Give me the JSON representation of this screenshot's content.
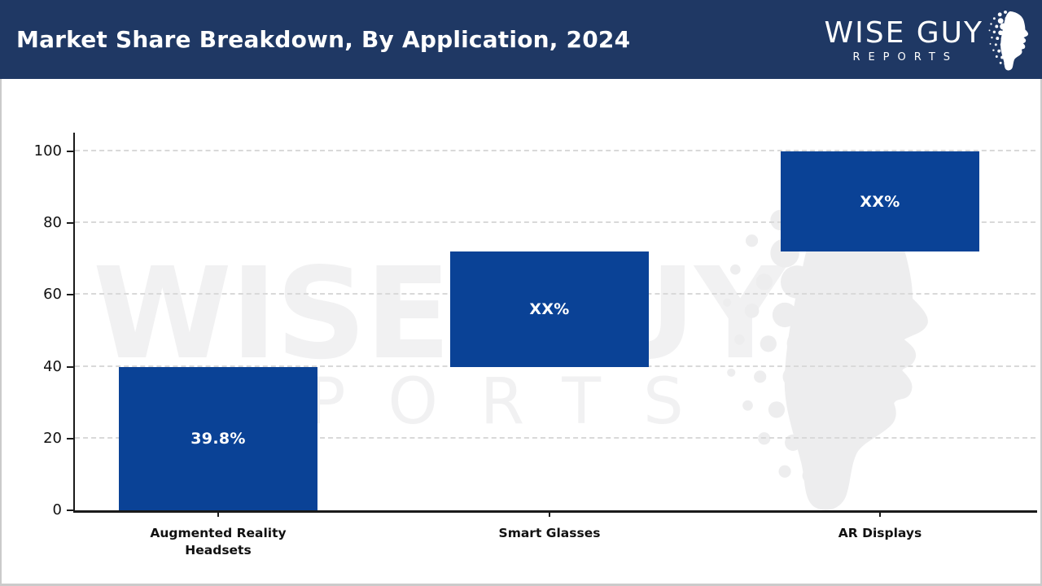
{
  "header": {
    "title": "Market Share Breakdown, By Application, 2024",
    "logo": {
      "brand_top": "WISE GUY",
      "brand_bottom": "REPORTS"
    }
  },
  "watermark": {
    "line1": "WISE GUY",
    "line2": "REPORTS"
  },
  "colors": {
    "header_bg": "#1f3864",
    "bar_fill": "#0a4296",
    "grid_line": "#d9d9d9",
    "axis_line": "#1a1a1a",
    "value_label_text": "#ffffff",
    "tick_label_text": "#111111",
    "watermark_gray": "#f1f1f2",
    "frame_border": "#cbcbcb"
  },
  "chart_data": {
    "type": "bar",
    "subtype": "floating-waterfall",
    "title": "Market Share Breakdown, By Application, 2024",
    "categories": [
      "Augmented Reality Headsets",
      "Smart Glasses",
      "AR Displays"
    ],
    "segments": [
      {
        "category": "Augmented Reality Headsets",
        "start": 0,
        "end": 39.8,
        "value_label": "39.8%"
      },
      {
        "category": "Smart Glasses",
        "start": 39.8,
        "end": 72,
        "value_label": "XX%"
      },
      {
        "category": "AR Displays",
        "start": 72,
        "end": 100,
        "value_label": "XX%"
      }
    ],
    "xlabel": "",
    "ylabel": "",
    "yticks": [
      0,
      20,
      40,
      60,
      80,
      100
    ],
    "ylim": [
      0,
      105.2
    ],
    "grid": {
      "horizontal": true,
      "style": "dashed"
    },
    "legend": "none"
  }
}
